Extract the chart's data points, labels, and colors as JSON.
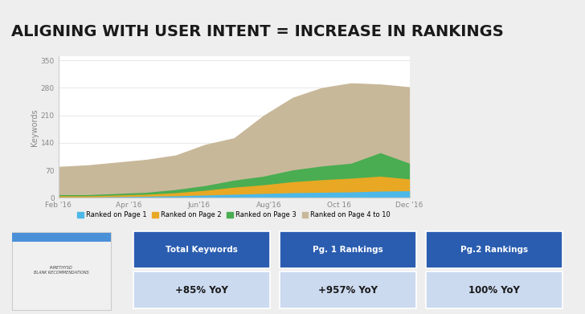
{
  "title": "ALIGNING WITH USER INTENT = INCREASE IN RANKINGS",
  "title_fontsize": 14,
  "title_color": "#1a1a1a",
  "background_color": "#eeeeee",
  "chart_bg": "#ffffff",
  "x_labels": [
    "Feb '16",
    "Apr '16",
    "Jun'16",
    "Aug'16",
    "Oct 16",
    "Dec '16"
  ],
  "ylabel": "Keywords",
  "yticks": [
    0,
    70,
    140,
    210,
    280,
    350
  ],
  "ylim": [
    0,
    360
  ],
  "page1": [
    2,
    2,
    3,
    4,
    5,
    7,
    9,
    11,
    13,
    14,
    15,
    17,
    18
  ],
  "page2": [
    3,
    3,
    4,
    5,
    8,
    12,
    18,
    22,
    28,
    32,
    35,
    38,
    30
  ],
  "page3": [
    3,
    3,
    4,
    5,
    8,
    12,
    18,
    22,
    30,
    35,
    38,
    60,
    40
  ],
  "page4to10": [
    72,
    76,
    80,
    84,
    88,
    105,
    108,
    155,
    185,
    200,
    205,
    175,
    195
  ],
  "color_page1": "#4db8e8",
  "color_page2": "#e8a824",
  "color_page3": "#4aad52",
  "color_page4to10": "#c8b89a",
  "legend_labels": [
    "Ranked on Page 1",
    "Ranked on Page 2",
    "Ranked on Page 3",
    "Ranked on Page 4 to 10"
  ],
  "table_header_bg": "#2a5db0",
  "table_header_color": "#ffffff",
  "table_row_bg": "#ccdaf0",
  "table_row_color": "#1a1a1a",
  "table_headers": [
    "Total Keywords",
    "Pg. 1 Rankings",
    "Pg.2 Rankings"
  ],
  "table_values": [
    "+85% YoY",
    "+957% YoY",
    "100% YoY"
  ]
}
